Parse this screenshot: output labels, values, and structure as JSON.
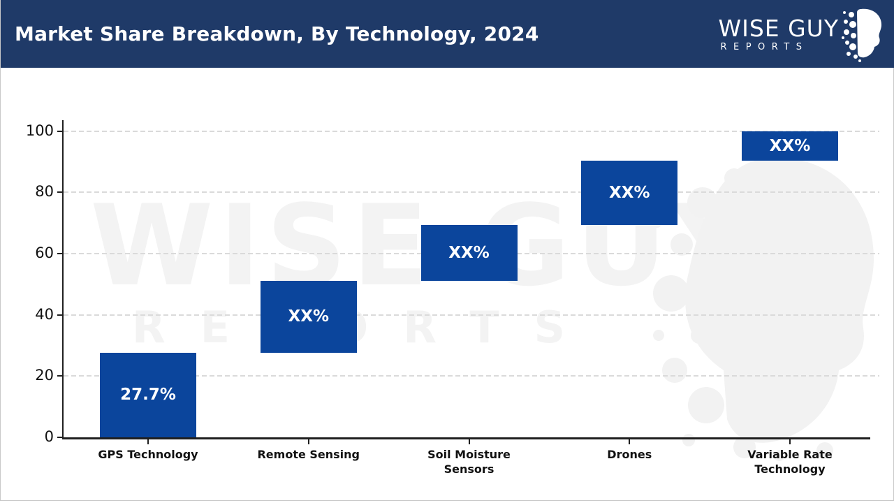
{
  "header": {
    "title": "Market Share Breakdown, By Technology, 2024",
    "bg_color": "#1f3a68",
    "logo": {
      "line1": "WISE GUY",
      "line2": "REPORTS",
      "icon": "head-profile-dots-icon"
    }
  },
  "watermark": {
    "line1": "WISE GUY",
    "line2": "REPORTS"
  },
  "chart_data": {
    "type": "bar",
    "subtype": "waterfall",
    "title": "Market Share Breakdown, By Technology, 2024",
    "bar_color": "#0b459c",
    "grid": "horizontal-dashed",
    "legend": "none",
    "xlabel": "",
    "ylabel": "",
    "ylim": [
      0,
      100
    ],
    "yticks": [
      0,
      20,
      40,
      60,
      80,
      100
    ],
    "categories": [
      {
        "name": "GPS Technology",
        "lines": [
          "GPS Technology"
        ]
      },
      {
        "name": "Remote Sensing",
        "lines": [
          "Remote Sensing"
        ]
      },
      {
        "name": "Soil Moisture Sensors",
        "lines": [
          "Soil Moisture",
          "Sensors"
        ]
      },
      {
        "name": "Drones",
        "lines": [
          "Drones"
        ]
      },
      {
        "name": "Variable Rate Technology",
        "lines": [
          "Variable Rate",
          "Technology"
        ]
      }
    ],
    "segments": [
      {
        "category": "GPS Technology",
        "start": 0,
        "end": 27.7,
        "label": "27.7%"
      },
      {
        "category": "Remote Sensing",
        "start": 27.7,
        "end": 51,
        "label": "XX%"
      },
      {
        "category": "Soil Moisture Sensors",
        "start": 51,
        "end": 69.3,
        "label": "XX%"
      },
      {
        "category": "Drones",
        "start": 69.3,
        "end": 90.3,
        "label": "XX%"
      },
      {
        "category": "Variable Rate Technology",
        "start": 90.3,
        "end": 100,
        "label": "XX%"
      }
    ]
  }
}
